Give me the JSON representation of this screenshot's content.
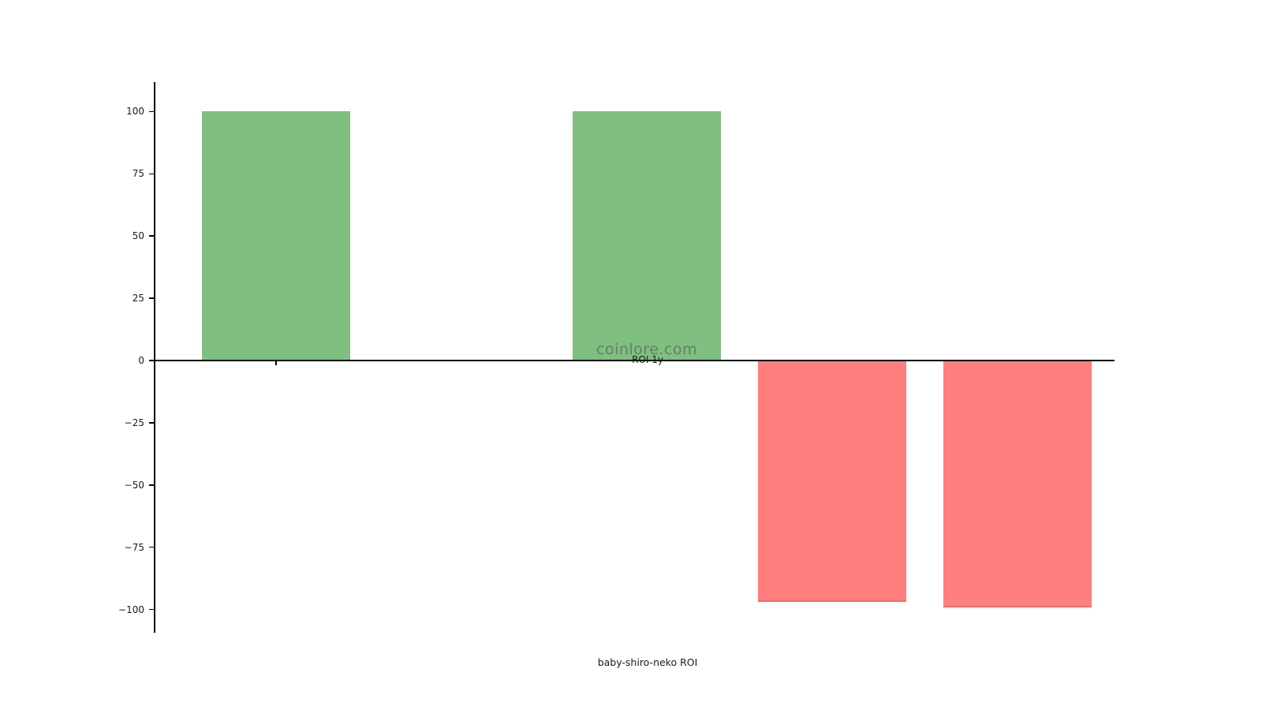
{
  "chart_data": {
    "type": "bar",
    "title": "baby-shiro-neko ROI",
    "watermark": "coinlore.com",
    "categories": [
      "",
      "",
      "",
      "",
      ""
    ],
    "values": [
      100,
      null,
      100,
      -97,
      -99.3
    ],
    "x_axis": {
      "tick_mark_category_index": 0,
      "label": "ROI 1y",
      "label_category_index": 2
    },
    "yticks": [
      100,
      75,
      50,
      25,
      0,
      -25,
      -50,
      -75,
      -100
    ],
    "ylim": [
      -110,
      110
    ],
    "grid": false,
    "legend": "none",
    "colors": {
      "positive_bar": "#7fbf7f",
      "negative_bar": "#ff7f7f",
      "axis": "#000000",
      "tick_label": "#1a1a1a",
      "watermark": "rgba(70,70,70,0.5)"
    }
  }
}
